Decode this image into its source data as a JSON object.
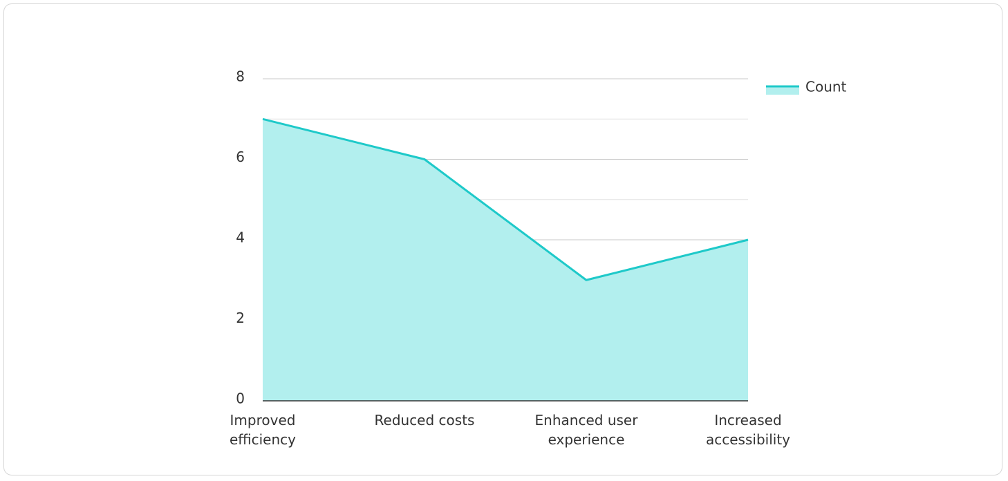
{
  "chart_data": {
    "type": "area",
    "categories": [
      "Improved efficiency",
      "Reduced costs",
      "Enhanced user experience",
      "Increased accessibility"
    ],
    "series": [
      {
        "name": "Count",
        "color": "#1ec9c9",
        "fill": "#b2efee",
        "values": [
          7,
          6,
          3,
          4
        ]
      }
    ],
    "ylim": [
      0,
      8
    ],
    "yticks": [
      0,
      2,
      4,
      6,
      8
    ],
    "minor_yticks": [
      1,
      3,
      5,
      7
    ],
    "grid": true,
    "legend": "top-right"
  }
}
